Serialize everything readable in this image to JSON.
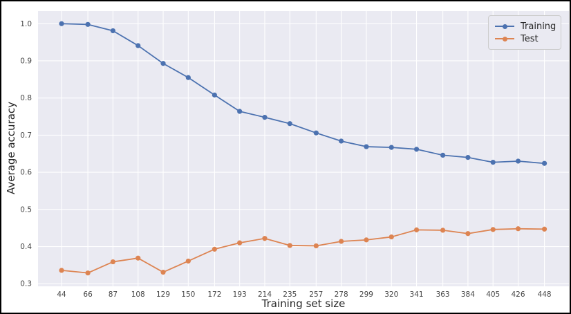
{
  "chart_data": {
    "type": "line",
    "title": "",
    "xlabel": "Training set size",
    "ylabel": "Average accuracy",
    "categories": [
      44,
      66,
      87,
      108,
      129,
      150,
      172,
      193,
      214,
      235,
      257,
      278,
      299,
      320,
      341,
      363,
      384,
      405,
      426,
      448
    ],
    "series": [
      {
        "name": "Training",
        "color": "#4c72b0",
        "values": [
          1.0,
          0.998,
          0.981,
          0.941,
          0.893,
          0.855,
          0.808,
          0.764,
          0.748,
          0.731,
          0.706,
          0.684,
          0.669,
          0.667,
          0.662,
          0.646,
          0.64,
          0.627,
          0.63,
          0.624
        ]
      },
      {
        "name": "Test",
        "color": "#dd8452",
        "values": [
          0.336,
          0.329,
          0.359,
          0.369,
          0.331,
          0.361,
          0.393,
          0.41,
          0.422,
          0.403,
          0.402,
          0.414,
          0.418,
          0.426,
          0.445,
          0.444,
          0.435,
          0.446,
          0.448,
          0.447
        ]
      }
    ],
    "yticks": [
      0.3,
      0.4,
      0.5,
      0.6,
      0.7,
      0.8,
      0.9,
      1.0
    ],
    "ytick_labels": [
      "0.3",
      "0.4",
      "0.5",
      "0.6",
      "0.7",
      "0.8",
      "0.9",
      "1.0"
    ],
    "xtick_labels": [
      "44",
      "66",
      "87",
      "108",
      "129",
      "150",
      "172",
      "193",
      "214",
      "235",
      "257",
      "278",
      "299",
      "320",
      "341",
      "363",
      "384",
      "405",
      "426",
      "448"
    ],
    "xlim": [
      24.3,
      468.5
    ],
    "ylim": [
      0.293,
      1.034
    ],
    "grid": true,
    "legend_position": "upper right",
    "colors": {
      "plot_background": "#eaeaf2",
      "grid_line": "#ffffff",
      "tick_label": "#444444",
      "axis_label": "#262626",
      "figure_background": "#ffffff",
      "figure_border": "#000000",
      "legend_background": "#eaeaf2",
      "legend_border": "#cccccc"
    }
  }
}
